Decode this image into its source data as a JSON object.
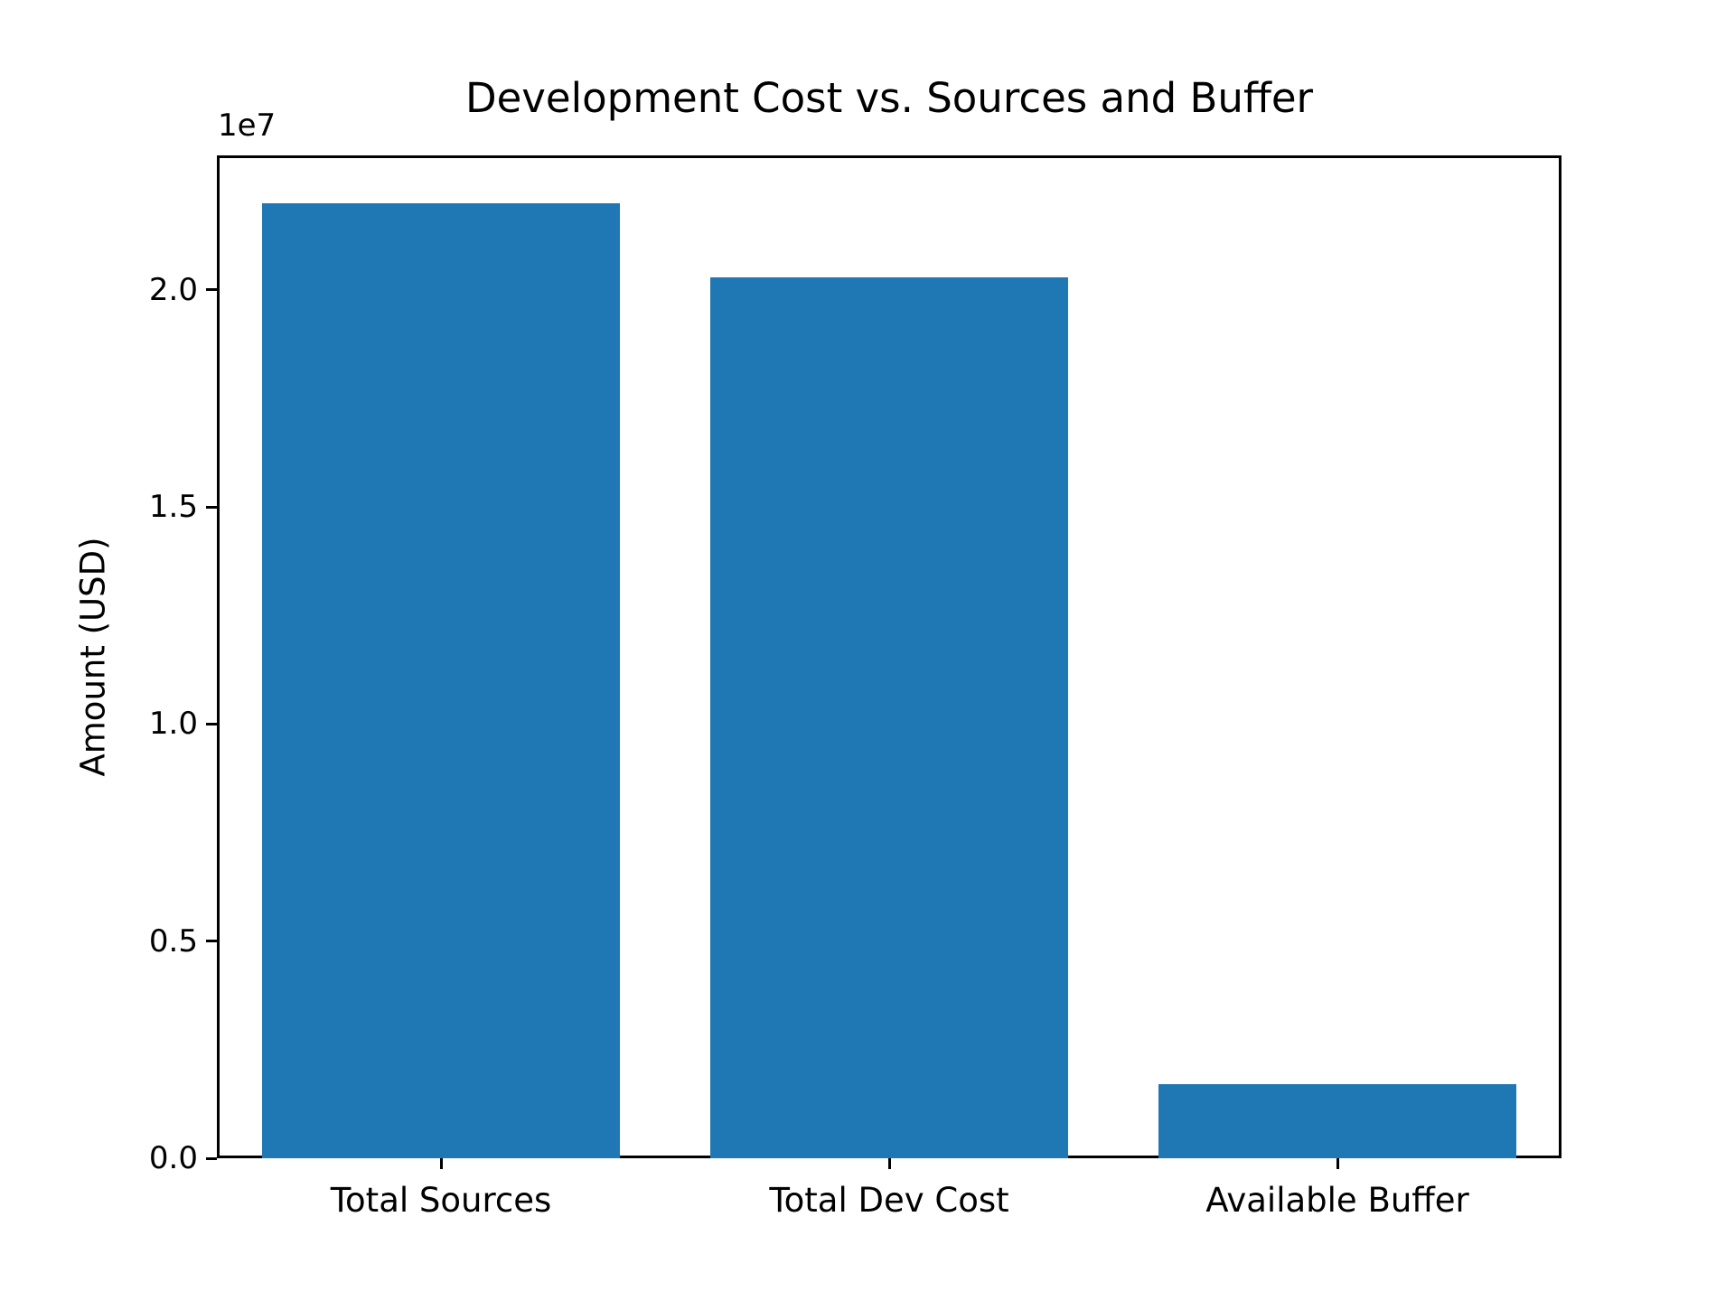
{
  "chart_data": {
    "type": "bar",
    "title": "Development Cost vs. Sources and Buffer",
    "xlabel": "",
    "ylabel": "Amount (USD)",
    "y_offset_text": "1e7",
    "categories": [
      "Total Sources",
      "Total Dev Cost",
      "Available Buffer"
    ],
    "values": [
      22000000,
      20300000,
      1700000
    ],
    "series": [
      {
        "name": "Amount",
        "values": [
          22000000,
          20300000,
          1700000
        ]
      }
    ],
    "ylim": [
      0,
      23100000
    ],
    "yticks": [
      {
        "value": 0,
        "label": "0.0"
      },
      {
        "value": 5000000,
        "label": "0.5"
      },
      {
        "value": 10000000,
        "label": "1.0"
      },
      {
        "value": 15000000,
        "label": "1.5"
      },
      {
        "value": 20000000,
        "label": "2.0"
      }
    ],
    "bar_color": "#1f77b4",
    "bar_width_fraction": 0.8,
    "grid": false,
    "legend": false
  }
}
